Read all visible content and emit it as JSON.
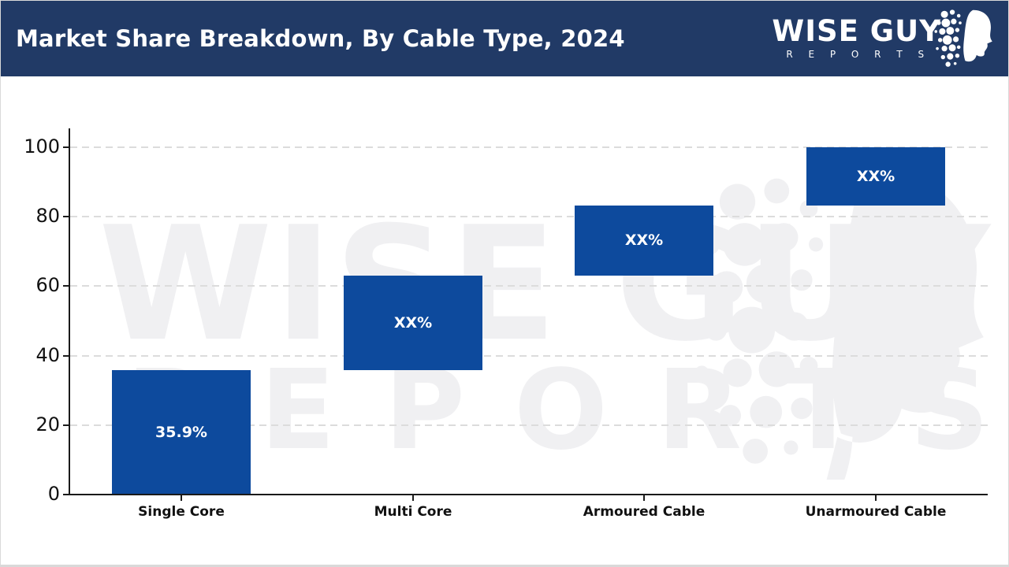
{
  "header": {
    "title": "Market Share Breakdown, By Cable Type, 2024",
    "logo": {
      "line1": "WISE GUY",
      "line2": "R E P O R T S"
    }
  },
  "watermark": {
    "line1": "WISE GUY",
    "line2": "REPORTS"
  },
  "colors": {
    "header_bg": "#213A66",
    "bar": "#0D4A9D",
    "axis": "#1a1a1a",
    "gridline": "#dcdcdc",
    "bar_label": "#ffffff",
    "watermark": "#f0f0f2",
    "page_border": "#d9d9d9"
  },
  "chart_data": {
    "type": "bar",
    "subtype": "waterfall-breakdown",
    "title": "Market Share Breakdown, By Cable Type, 2024",
    "categories": [
      "Single Core",
      "Multi Core",
      "Armoured Cable",
      "Unarmoured Cable"
    ],
    "segments": [
      {
        "category": "Single Core",
        "start": 0,
        "end": 35.9,
        "label": "35.9%"
      },
      {
        "category": "Multi Core",
        "start": 35.9,
        "end": 63.1,
        "label": "XX%"
      },
      {
        "category": "Armoured Cable",
        "start": 63.1,
        "end": 83.3,
        "label": "XX%"
      },
      {
        "category": "Unarmoured Cable",
        "start": 83.3,
        "end": 100,
        "label": "XX%"
      }
    ],
    "xlabel": "",
    "ylabel": "",
    "ylim": [
      0,
      100
    ],
    "yticks": [
      0,
      20,
      40,
      60,
      80,
      100
    ],
    "grid": "horizontal-dashed",
    "legend": "none"
  }
}
